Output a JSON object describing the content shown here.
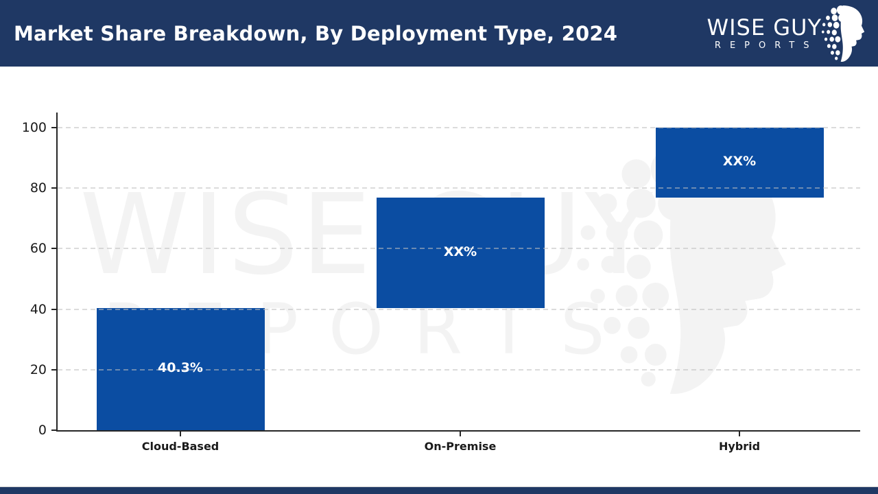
{
  "header": {
    "title": "Market Share Breakdown, By Deployment Type, 2024",
    "logo": {
      "wordmark": "WISE GUY",
      "subtext": "REPORTS"
    }
  },
  "watermark": {
    "line1": "WISE GUY",
    "line2": "REPORTS"
  },
  "chart_data": {
    "type": "bar",
    "subtype": "waterfall (stacked percentage breakdown)",
    "title": "Market Share Breakdown, By Deployment Type, 2024",
    "categories": [
      "Cloud-Based",
      "On-Premise",
      "Hybrid"
    ],
    "segments": [
      {
        "category": "Cloud-Based",
        "start": 0,
        "end": 40.3,
        "label": "40.3%"
      },
      {
        "category": "On-Premise",
        "start": 40.3,
        "end": 76.9,
        "label": "XX%"
      },
      {
        "category": "Hybrid",
        "start": 76.9,
        "end": 100,
        "label": "XX%"
      }
    ],
    "values_displayed": [
      "40.3%",
      "XX%",
      "XX%"
    ],
    "xlabel": "",
    "ylabel": "",
    "yticks": [
      0,
      20,
      40,
      60,
      80,
      100
    ],
    "ytick_labels": [
      "0",
      "20",
      "40",
      "60",
      "80",
      "100"
    ],
    "ylim": [
      0,
      105
    ],
    "grid": true,
    "grid_style": "dashed",
    "legend": "none"
  },
  "colors": {
    "header_bg": "#1f3864",
    "footer_bg": "#1f3864",
    "bar": "#0b4da2",
    "bar_label_text": "#ffffff",
    "axis": "#262626",
    "tick_text": "#1a1a1a",
    "gridline": "#dcdcdc",
    "watermark": "#f3f3f3",
    "background": "#ffffff"
  }
}
